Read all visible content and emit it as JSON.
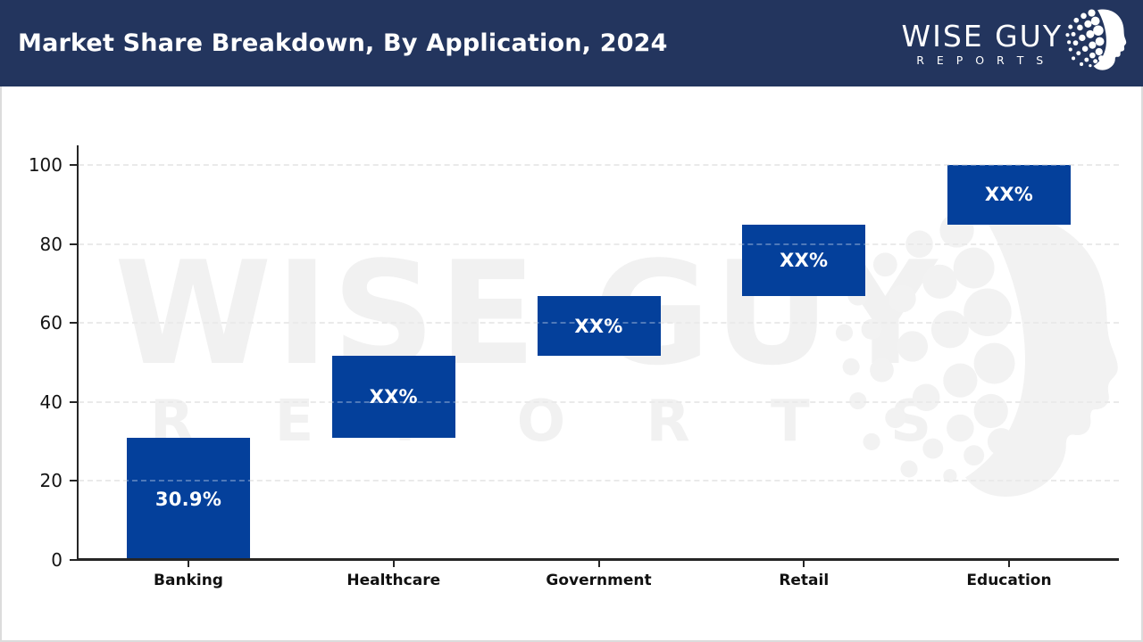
{
  "header": {
    "title": "Market Share Breakdown, By Application, 2024",
    "logo": {
      "line1": "WISE GUY",
      "line2": "R E P O R T S"
    }
  },
  "watermark": {
    "line1": "WISE GUY",
    "line2": "R E P O R T S"
  },
  "chart_data": {
    "type": "bar",
    "subtype": "waterfall",
    "title": "Market Share Breakdown, By Application, 2024",
    "categories": [
      "Banking",
      "Healthcare",
      "Government",
      "Retail",
      "Education"
    ],
    "bars": [
      {
        "category": "Banking",
        "start": 0,
        "end": 30.9,
        "label": "30.9%"
      },
      {
        "category": "Healthcare",
        "start": 30.9,
        "end": 51.6,
        "label": "XX%"
      },
      {
        "category": "Government",
        "start": 51.6,
        "end": 66.8,
        "label": "XX%"
      },
      {
        "category": "Retail",
        "start": 66.8,
        "end": 84.9,
        "label": "XX%"
      },
      {
        "category": "Education",
        "start": 84.9,
        "end": 100,
        "label": "XX%"
      }
    ],
    "xlabel": "",
    "ylabel": "",
    "ylim": [
      0,
      105
    ],
    "yticks": [
      0,
      20,
      40,
      60,
      80,
      100
    ],
    "grid": "horizontal-dashed",
    "legend": "none",
    "colors": {
      "bar": "#04409b",
      "bar_label": "#ffffff",
      "grid": "#e1e1e1",
      "axis": "#262626",
      "header_bg": "#23355e",
      "watermark": "#f1f1f1"
    }
  }
}
